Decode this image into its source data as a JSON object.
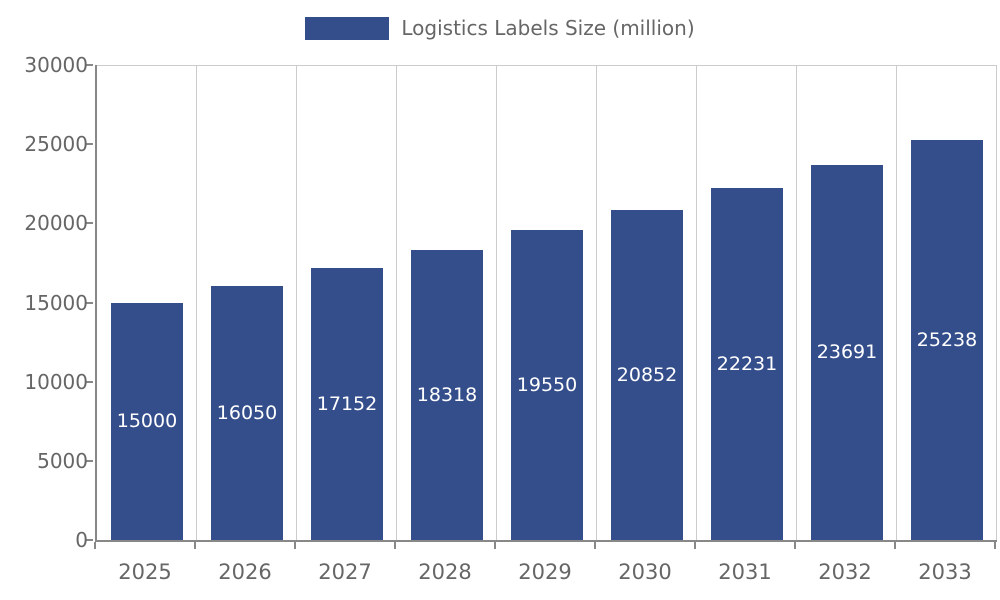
{
  "legend": {
    "label": "Logistics Labels Size (million)"
  },
  "chart_data": {
    "type": "bar",
    "title": "Logistics Labels Size (million)",
    "categories": [
      "2025",
      "2026",
      "2027",
      "2028",
      "2029",
      "2030",
      "2031",
      "2032",
      "2033"
    ],
    "values": [
      15000,
      16050,
      17152,
      18318,
      19550,
      20852,
      22231,
      23691,
      25238
    ],
    "xlabel": "",
    "ylabel": "",
    "ylim": [
      0,
      30000
    ],
    "yticks": [
      0,
      5000,
      10000,
      15000,
      20000,
      25000,
      30000
    ],
    "legend_position": "top-center",
    "grid": "vertical-splitlines",
    "value_labels": "inside-center",
    "bar_color": "#344e8b",
    "value_label_color": "#ffffff",
    "axis_text_color": "#666666",
    "gridline_color": "#cccccc",
    "axis_line_color": "#888888"
  }
}
